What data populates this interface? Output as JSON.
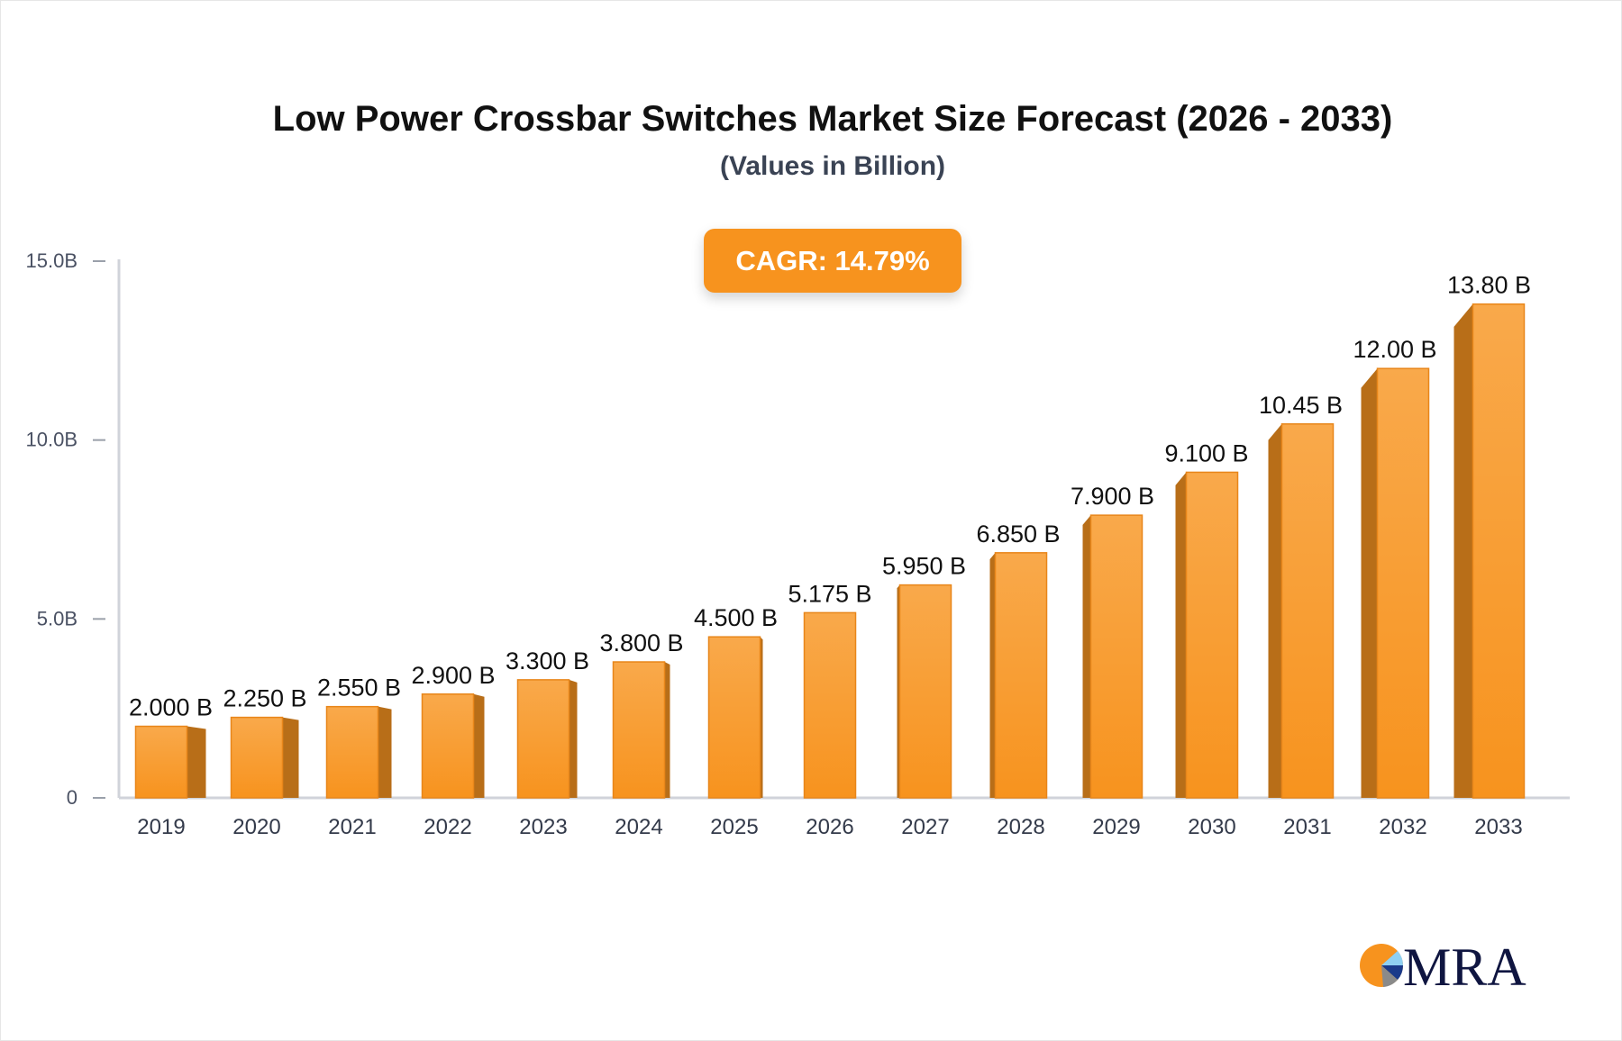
{
  "title": "Low Power Crossbar Switches Market Size Forecast (2026 - 2033)",
  "subtitle": "(Values in Billion)",
  "badge": "CAGR: 14.79%",
  "logo_text": "MRA",
  "colors": {
    "bar_front": "#f7931e",
    "bar_top": "#f9a94b",
    "bar_side": "#b86e18",
    "axis": "#d0d3da",
    "badge": "#f7931e"
  },
  "chart_data": {
    "type": "bar",
    "title": "Low Power Crossbar Switches Market Size Forecast (2026 - 2033)",
    "subtitle": "(Values in Billion)",
    "categories": [
      "2019",
      "2020",
      "2021",
      "2022",
      "2023",
      "2024",
      "2025",
      "2026",
      "2027",
      "2028",
      "2029",
      "2030",
      "2031",
      "2032",
      "2033"
    ],
    "values": [
      2.0,
      2.25,
      2.55,
      2.9,
      3.3,
      3.8,
      4.5,
      5.175,
      5.95,
      6.85,
      7.9,
      9.1,
      10.45,
      12.0,
      13.8
    ],
    "data_labels": [
      "2.000 B",
      "2.250 B",
      "2.550 B",
      "2.900 B",
      "3.300 B",
      "3.800 B",
      "4.500 B",
      "5.175 B",
      "5.950 B",
      "6.850 B",
      "7.900 B",
      "9.100 B",
      "10.45 B",
      "12.00 B",
      "13.80 B"
    ],
    "ylim": [
      0,
      15
    ],
    "yticks": [
      0,
      5,
      10,
      15
    ],
    "ytick_labels": [
      "0",
      "5.0B",
      "10.0B",
      "15.0B"
    ],
    "xlabel": "",
    "ylabel": "",
    "grid": false
  }
}
